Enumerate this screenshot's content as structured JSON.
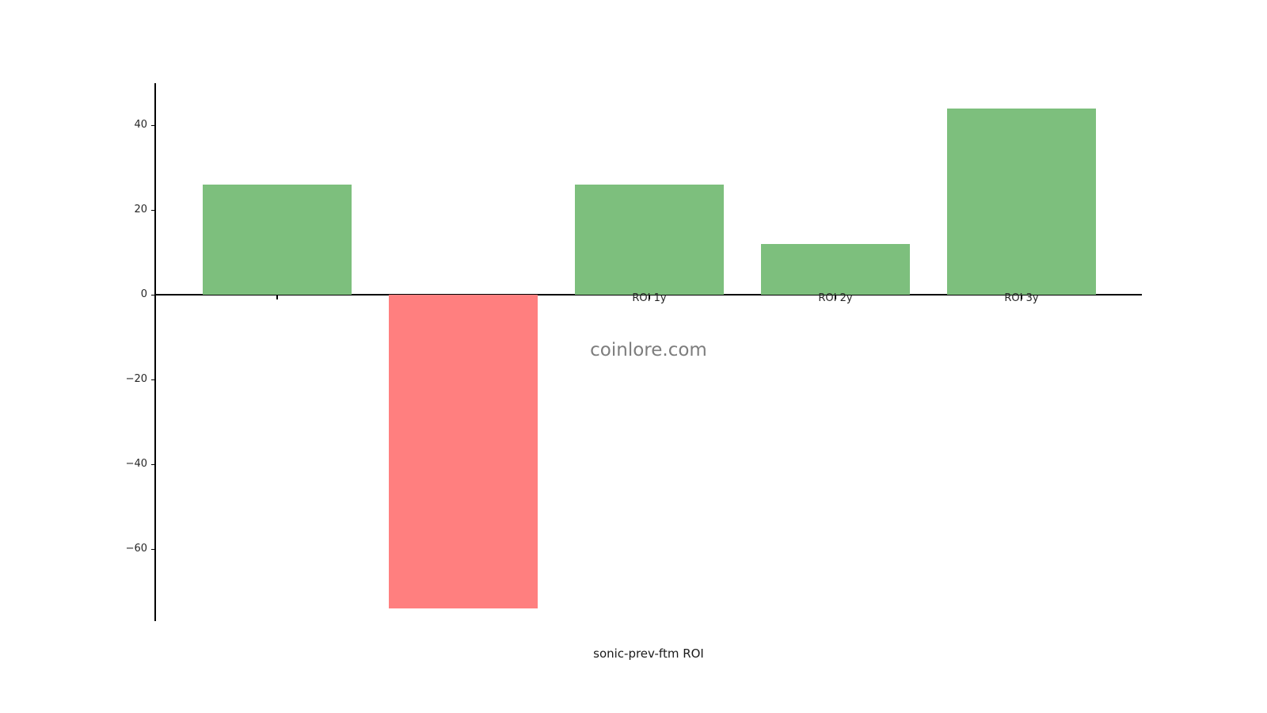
{
  "chart_data": {
    "type": "bar",
    "categories": [
      "",
      "",
      "ROI 1y",
      "ROI 2y",
      "ROI 3y"
    ],
    "values": [
      26,
      -74,
      26,
      12,
      44
    ],
    "title": "sonic-prev-ftm ROI",
    "xlabel": "",
    "ylabel": "",
    "ylim": [
      -77,
      50
    ],
    "yticks": [
      40,
      20,
      0,
      -20,
      -40,
      -60
    ],
    "grid": false,
    "legend_position": "none",
    "bar_colors": {
      "positive": "#7dbf7d",
      "negative": "#ff7f7f"
    },
    "axis_color": "#000000",
    "tick_text_color": "#262626",
    "watermark": "coinlore.com",
    "watermark_color": "#7d7d7d"
  }
}
